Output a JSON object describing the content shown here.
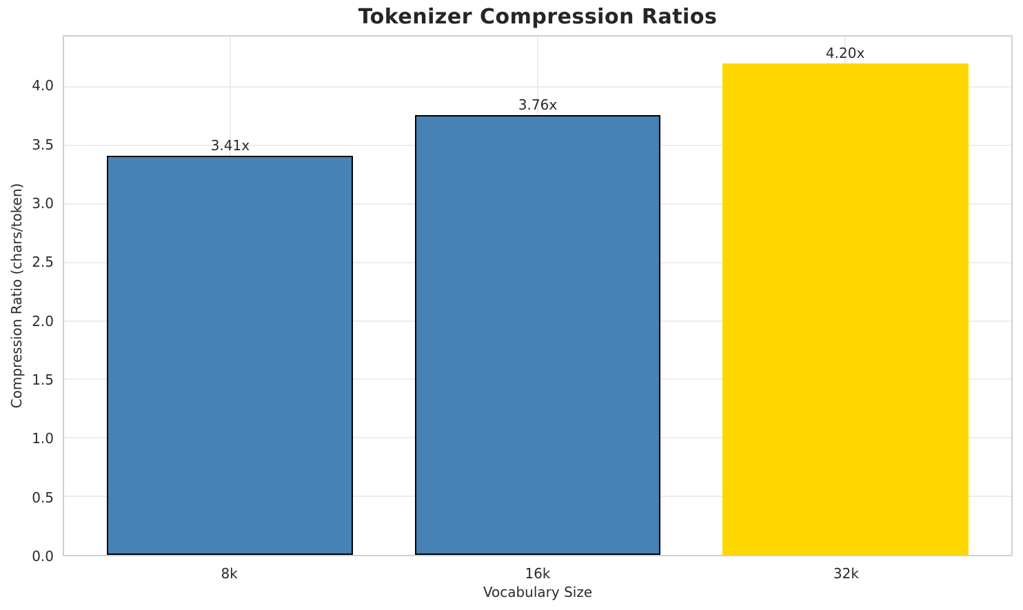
{
  "chart_data": {
    "type": "bar",
    "title": "Tokenizer Compression Ratios",
    "xlabel": "Vocabulary Size",
    "ylabel": "Compression Ratio (chars/token)",
    "categories": [
      "8k",
      "16k",
      "32k"
    ],
    "values": [
      3.41,
      3.76,
      4.2
    ],
    "bar_labels": [
      "3.41x",
      "3.76x",
      "4.20x"
    ],
    "bar_colors": [
      "#4682B4",
      "#4682B4",
      "#FFD700"
    ],
    "bar_edge_colors": [
      "#000000",
      "#000000",
      null
    ],
    "yticks": [
      0.0,
      0.5,
      1.0,
      1.5,
      2.0,
      2.5,
      3.0,
      3.5,
      4.0
    ],
    "ytick_labels": [
      "0.0",
      "0.5",
      "1.0",
      "1.5",
      "2.0",
      "2.5",
      "3.0",
      "3.5",
      "4.0"
    ],
    "ylim": [
      0,
      4.43
    ],
    "xlim": [
      -0.54,
      2.54
    ],
    "bar_width": 0.8,
    "grid": true,
    "legend": false,
    "colors": {
      "grid": "#ececec",
      "spine": "#cfcfcf",
      "text": "#2b2b2b",
      "title": "#262626",
      "background": "#ffffff"
    }
  }
}
